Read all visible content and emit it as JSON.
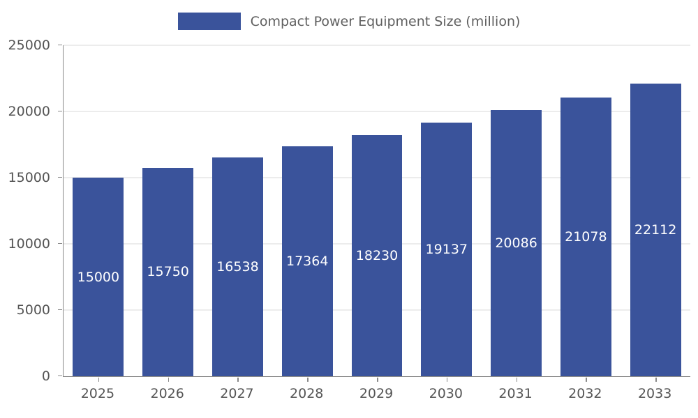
{
  "chart_data": {
    "type": "bar",
    "title": "Compact Power Equipment Size (million)",
    "categories": [
      "2025",
      "2026",
      "2027",
      "2028",
      "2029",
      "2030",
      "2031",
      "2032",
      "2033"
    ],
    "values": [
      15000,
      15750,
      16538,
      17364,
      18230,
      19137,
      20086,
      21078,
      22112
    ],
    "xlabel": "",
    "ylabel": "",
    "ylim": [
      0,
      25000
    ],
    "yticks": [
      0,
      5000,
      10000,
      15000,
      20000,
      25000
    ],
    "grid": true,
    "legend_position": "top",
    "colors": {
      "bar": "#3a539b",
      "value_label": "#ffffff",
      "grid": "#d9d9d9",
      "axis": "#8a8a8a",
      "tick_label": "#555555",
      "title": "#5f5f5f",
      "background": "#ffffff"
    }
  }
}
